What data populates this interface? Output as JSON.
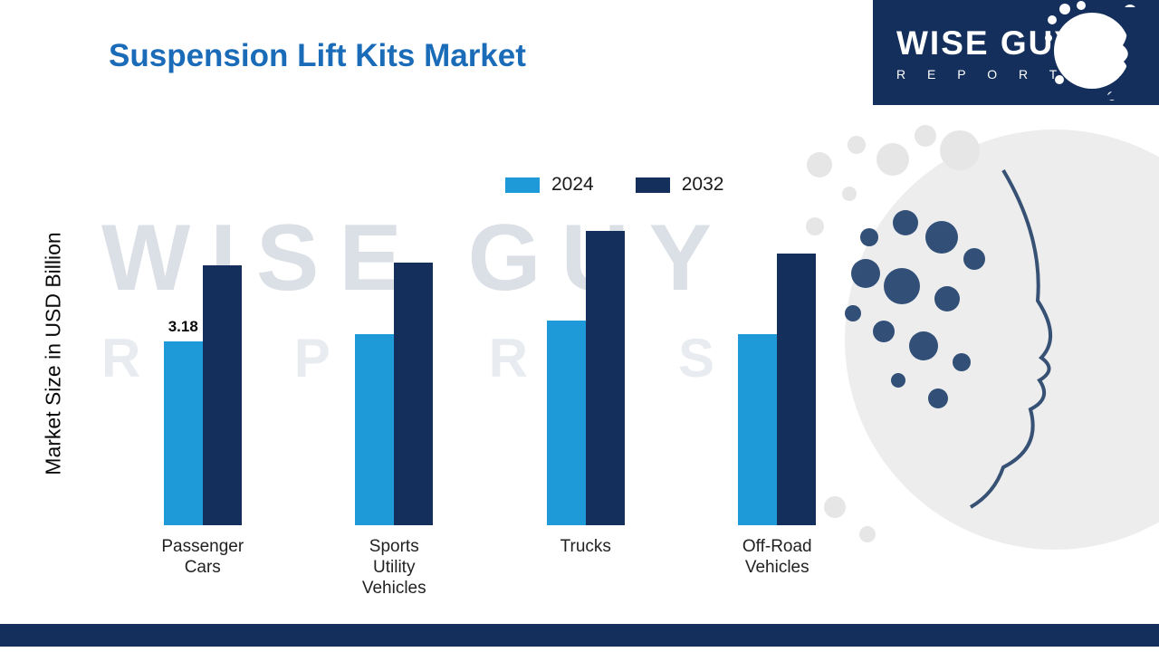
{
  "title": "Suspension Lift Kits Market",
  "logo": {
    "brand_line1": "WISE GUY",
    "brand_line2": "R E P O R T S"
  },
  "watermark": {
    "line1": "WISE GUY",
    "line2": "R E P O R T S"
  },
  "chart_data": {
    "type": "bar",
    "title": "Suspension Lift Kits Market",
    "ylabel": "Market Size in USD Billion",
    "units": "USD Billion",
    "categories": [
      "Passenger Cars",
      "Sports Utility Vehicles",
      "Trucks",
      "Off-Road Vehicles"
    ],
    "series": [
      {
        "name": "2024",
        "color": "#1e9ad8",
        "values": [
          3.18,
          3.3,
          3.55,
          3.3
        ]
      },
      {
        "name": "2032",
        "color": "#142f5c",
        "values": [
          4.5,
          4.55,
          5.1,
          4.7
        ]
      }
    ],
    "value_labels": [
      {
        "category_index": 0,
        "series_index": 0,
        "text": "3.18"
      }
    ],
    "ylim": [
      0,
      5.8
    ],
    "grid": false,
    "legend_position": "top-center"
  },
  "colors": {
    "title": "#1b6cb8",
    "accent_light": "#1e9ad8",
    "accent_dark": "#142f5c",
    "logo_bg": "#142f5c",
    "footer_bar": "#142f5c",
    "watermark": "#dbe0e6",
    "background_circle": "#ededed"
  }
}
